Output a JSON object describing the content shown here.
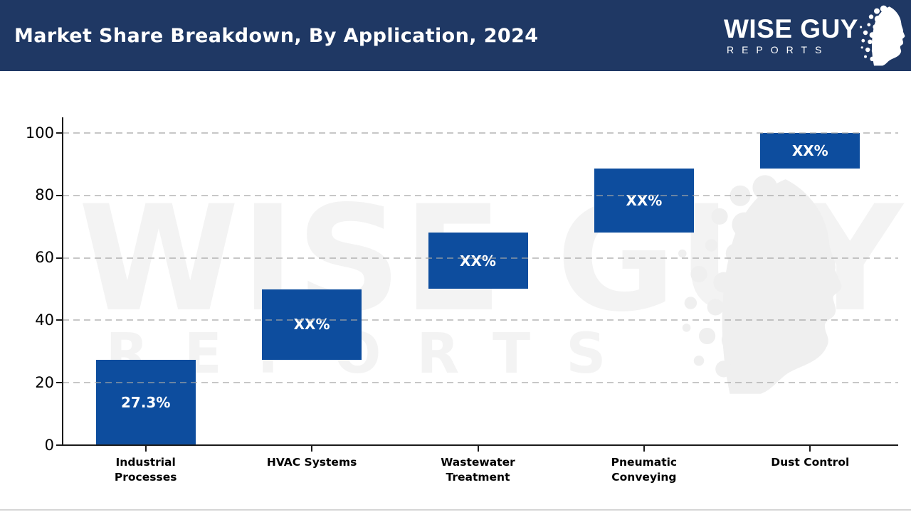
{
  "header": {
    "title": "Market Share Breakdown, By Application, 2024",
    "logo": {
      "line1": "WISE GUY",
      "line2": "REPORTS"
    }
  },
  "watermark": {
    "line1": "WISE GUY",
    "line2": "REPORTS"
  },
  "colors": {
    "header_bg": "#1f3864",
    "bar_blue": "#0d4d9e",
    "title_text": "#ffffff",
    "axis": "#1a1a1a",
    "gridline": "#a5a5a5",
    "bar_label": "#ffffff",
    "watermark_gray": "#efefef"
  },
  "chart_data": {
    "type": "bar",
    "subtype": "waterfall",
    "title": "Market Share Breakdown, By Application, 2024",
    "xlabel": "",
    "ylabel": "",
    "ylim": [
      0,
      105
    ],
    "y_ticks": [
      0,
      20,
      40,
      60,
      80,
      100
    ],
    "grid": "dashed-horizontal",
    "legend": "none",
    "categories": [
      "Industrial Processes",
      "HVAC Systems",
      "Wastewater Treatment",
      "Pneumatic Conveying",
      "Dust Control"
    ],
    "categories_display": [
      "Industrial\nProcesses",
      "HVAC Systems",
      "Wastewater\nTreatment",
      "Pneumatic\nConveying",
      "Dust Control"
    ],
    "segments": [
      {
        "category": "Industrial Processes",
        "start": 0,
        "end": 27.3,
        "label": "27.3%"
      },
      {
        "category": "HVAC Systems",
        "start": 27.3,
        "end": 50.0,
        "label": "XX%"
      },
      {
        "category": "Wastewater Treatment",
        "start": 50.0,
        "end": 68.2,
        "label": "XX%"
      },
      {
        "category": "Pneumatic Conveying",
        "start": 68.2,
        "end": 88.5,
        "label": "XX%"
      },
      {
        "category": "Dust Control",
        "start": 88.5,
        "end": 100.0,
        "label": "XX%"
      }
    ]
  }
}
